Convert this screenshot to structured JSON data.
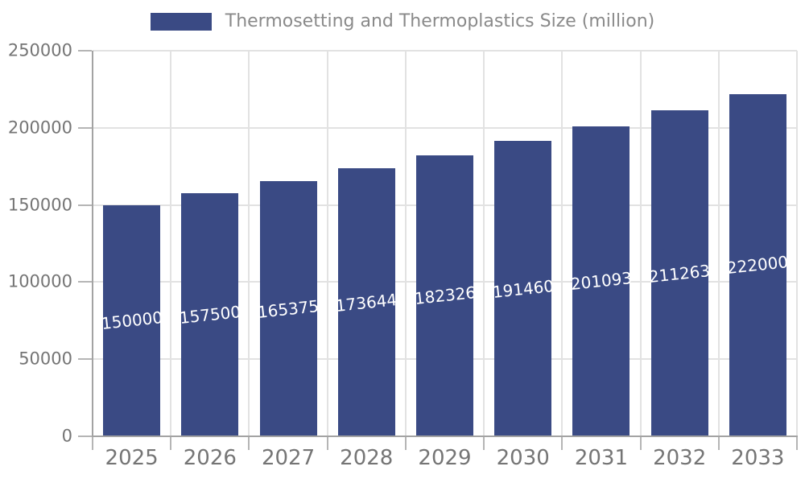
{
  "chart_data": {
    "type": "bar",
    "title": "",
    "legend_position": "top-center",
    "categories": [
      "2025",
      "2026",
      "2027",
      "2028",
      "2029",
      "2030",
      "2031",
      "2032",
      "2033"
    ],
    "series": [
      {
        "name": "Thermosetting and Thermoplastics Size (million)",
        "values": [
          150000,
          157500,
          165375,
          173644,
          182326,
          191460,
          201093,
          211263,
          222000
        ]
      }
    ],
    "bar_value_labels": [
      "150000",
      "157500",
      "165375",
      "173644",
      "182326",
      "191460",
      "201093",
      "211263",
      "222000"
    ],
    "xlabel": "",
    "ylabel": "",
    "ylim": [
      0,
      250000
    ],
    "yticks": [
      0,
      50000,
      100000,
      150000,
      200000,
      250000
    ],
    "ytick_labels": [
      "0",
      "50000",
      "100000",
      "150000",
      "200000",
      "250000"
    ],
    "grid": true,
    "colors": {
      "bar": "#3A4A84",
      "bar_label_text": "#FFFFFF",
      "grid_line": "#E2E2E2",
      "axis_spine": "#A3A3A3",
      "axis_tick": "#B5B5B5",
      "tick_label_text": "#757575",
      "legend_text": "#8A8A8A",
      "background": "#FFFFFF"
    }
  }
}
